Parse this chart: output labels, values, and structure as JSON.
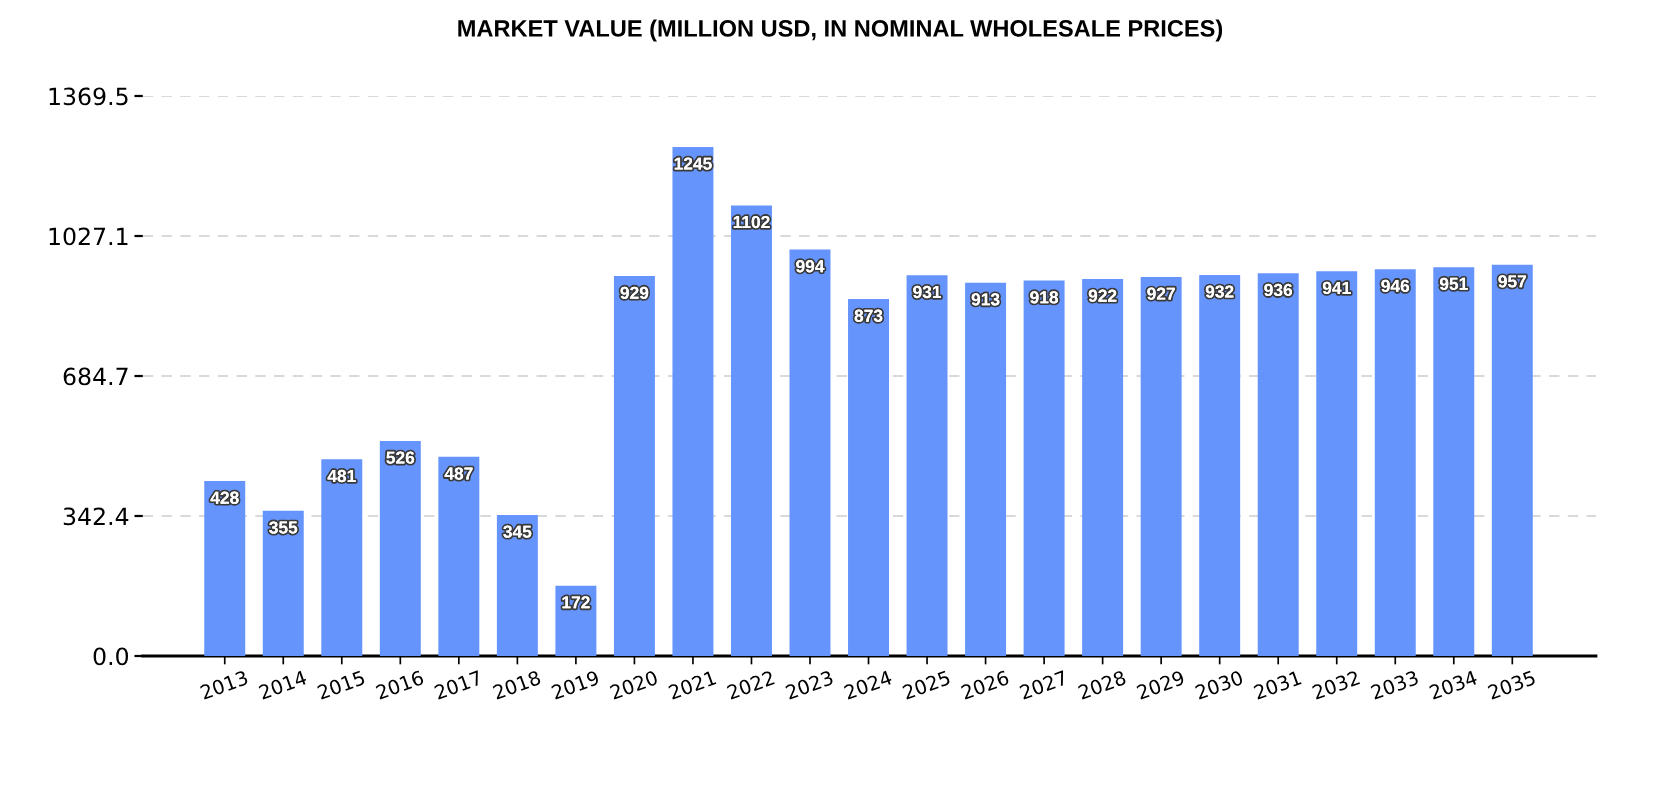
{
  "chart_data": {
    "type": "bar",
    "title": "MARKET VALUE (MILLION USD, IN NOMINAL WHOLESALE PRICES)",
    "categories": [
      "2013",
      "2014",
      "2015",
      "2016",
      "2017",
      "2018",
      "2019",
      "2020",
      "2021",
      "2022",
      "2023",
      "2024",
      "2025",
      "2026",
      "2027",
      "2028",
      "2029",
      "2030",
      "2031",
      "2032",
      "2033",
      "2034",
      "2035"
    ],
    "values": [
      428,
      355,
      481,
      526,
      487,
      345,
      172,
      929,
      1245,
      1102,
      994,
      873,
      931,
      913,
      918,
      922,
      927,
      932,
      936,
      941,
      946,
      951,
      957
    ],
    "color": "#6694fd",
    "ylim": [
      0,
      1369.5
    ],
    "yticks": [
      {
        "value": 0,
        "label": "0.0"
      },
      342.4,
      684.7,
      1027.1,
      1369.5
    ],
    "grid": "y",
    "data_labels": true
  }
}
